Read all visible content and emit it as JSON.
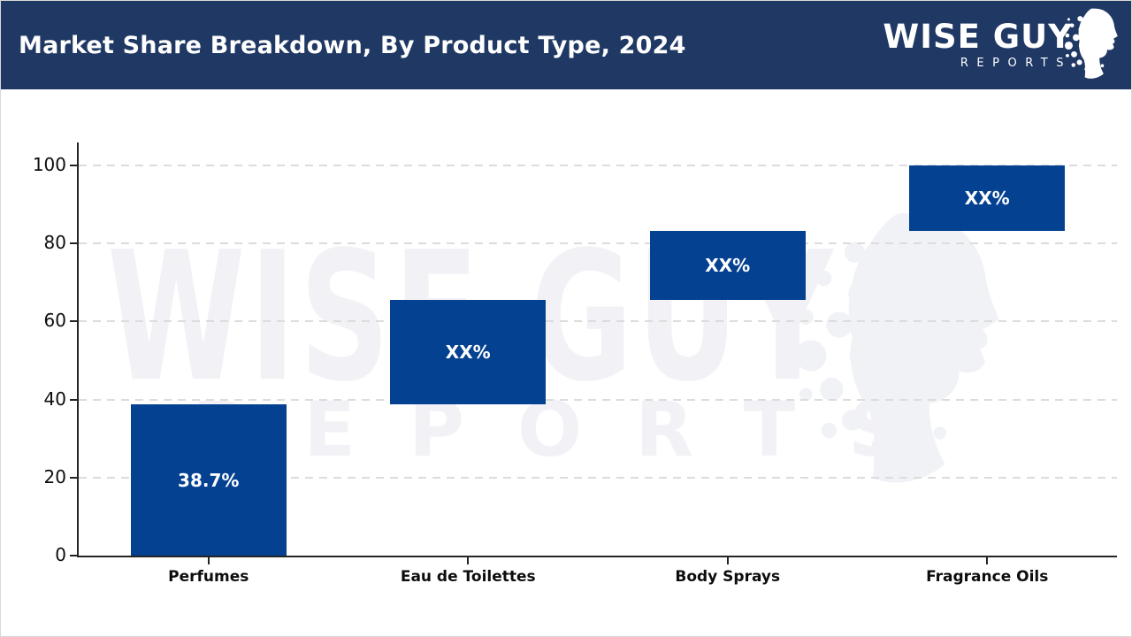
{
  "header": {
    "title": "Market Share Breakdown, By Product Type, 2024",
    "bg_color": "#1f3864",
    "logo": {
      "line1": "WISE GUY",
      "line2": "REPORTS"
    }
  },
  "watermark": {
    "line1": "WISE GUY",
    "line2": "REPORTS"
  },
  "chart_data": {
    "type": "bar",
    "subtype": "waterfall",
    "title": "Market Share Breakdown, By Product Type, 2024",
    "xlabel": "",
    "ylabel": "",
    "ylim": [
      0,
      100
    ],
    "yticks": [
      0,
      20,
      40,
      60,
      80,
      100
    ],
    "grid": "horizontal dashed",
    "legend": "none",
    "categories": [
      "Perfumes",
      "Eau de Toilettes",
      "Body Sprays",
      "Fragrance Oils"
    ],
    "segments": [
      {
        "category": "Perfumes",
        "start": 0,
        "end": 38.7,
        "value": 38.7,
        "label": "38.7%"
      },
      {
        "category": "Eau de Toilettes",
        "start": 38.7,
        "end": 65.5,
        "value": 26.8,
        "label": "XX%"
      },
      {
        "category": "Body Sprays",
        "start": 65.5,
        "end": 83.2,
        "value": 17.7,
        "label": "XX%"
      },
      {
        "category": "Fragrance Oils",
        "start": 83.2,
        "end": 100,
        "value": 16.8,
        "label": "XX%"
      }
    ],
    "bar_color": "#054191",
    "bar_label_color": "#ffffff",
    "grid_color": "#dcdcdc",
    "axis_color": "#242424",
    "tick_label_color": "#0d0d0d"
  }
}
